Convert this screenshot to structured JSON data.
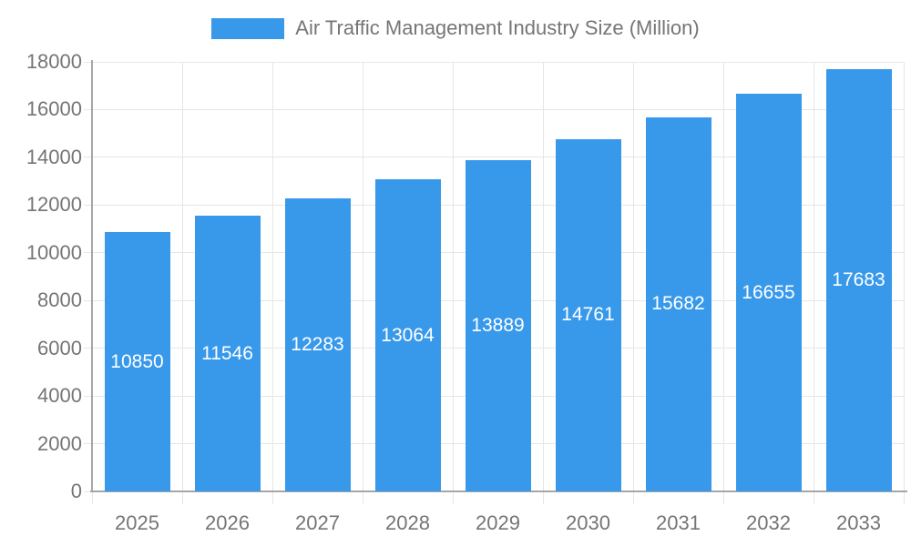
{
  "chart_data": {
    "type": "bar",
    "title": "Air Traffic Management Industry Size (Million)",
    "legend": {
      "position": "top",
      "entries": [
        "Air Traffic Management Industry Size (Million)"
      ]
    },
    "categories": [
      "2025",
      "2026",
      "2027",
      "2028",
      "2029",
      "2030",
      "2031",
      "2032",
      "2033"
    ],
    "values": [
      10850,
      11546,
      12283,
      13064,
      13889,
      14761,
      15682,
      16655,
      17683
    ],
    "xlabel": "",
    "ylabel": "",
    "ylim": [
      0,
      18000
    ],
    "ytick_interval": 2000,
    "yticks": [
      0,
      2000,
      4000,
      6000,
      8000,
      10000,
      12000,
      14000,
      16000,
      18000
    ],
    "grid": true,
    "value_label_position": "inside-center",
    "colors": {
      "bar": "#3899EB",
      "grid": "#e6e6e6",
      "axis": "#a6a6a6",
      "tick_text": "#757575",
      "value_label": "#ffffff"
    }
  }
}
